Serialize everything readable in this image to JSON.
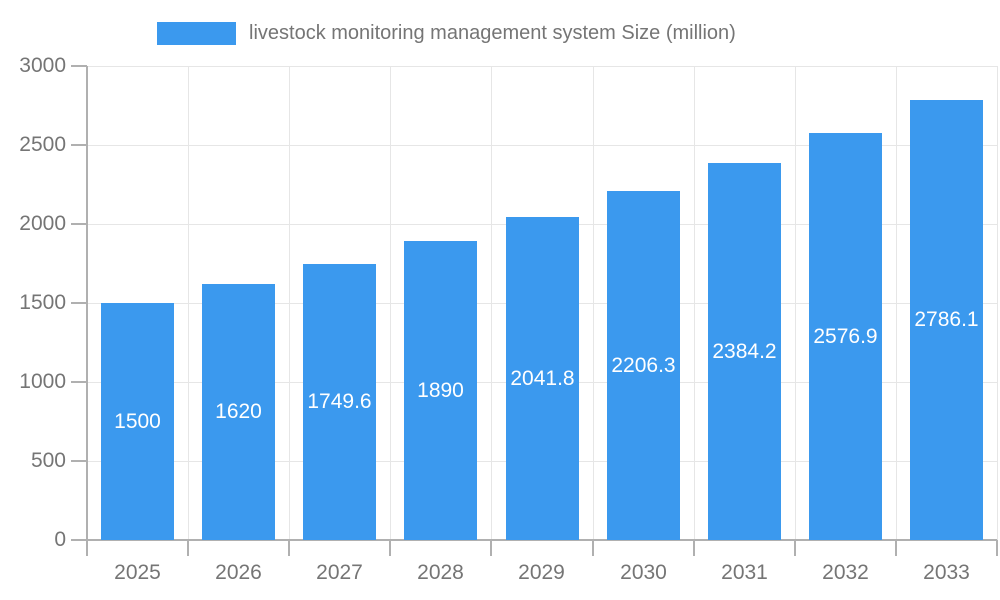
{
  "chart_data": {
    "type": "bar",
    "title": "livestock monitoring management system Size (million)",
    "categories": [
      "2025",
      "2026",
      "2027",
      "2028",
      "2029",
      "2030",
      "2031",
      "2032",
      "2033"
    ],
    "values": [
      1500,
      1620,
      1749.6,
      1890,
      2041.8,
      2206.3,
      2384.2,
      2576.9,
      2786.1
    ],
    "value_labels": [
      "1500",
      "1620",
      "1749.6",
      "1890",
      "2041.8",
      "2206.3",
      "2384.2",
      "2576.9",
      "2786.1"
    ],
    "xlabel": "",
    "ylabel": "",
    "y_ticks": [
      0,
      500,
      1000,
      1500,
      2000,
      2500,
      3000
    ],
    "ylim": [
      0,
      3000
    ],
    "grid": true,
    "legend_position": "top",
    "value_label_position": "center-of-bar",
    "colors": {
      "bar": "#3b99ee",
      "axis_line": "#b0b0b0",
      "gridline": "#e6e6e6",
      "axis_text": "#757575",
      "legend_text": "#757575",
      "value_text": "#ffffff",
      "background": "#ffffff"
    }
  }
}
